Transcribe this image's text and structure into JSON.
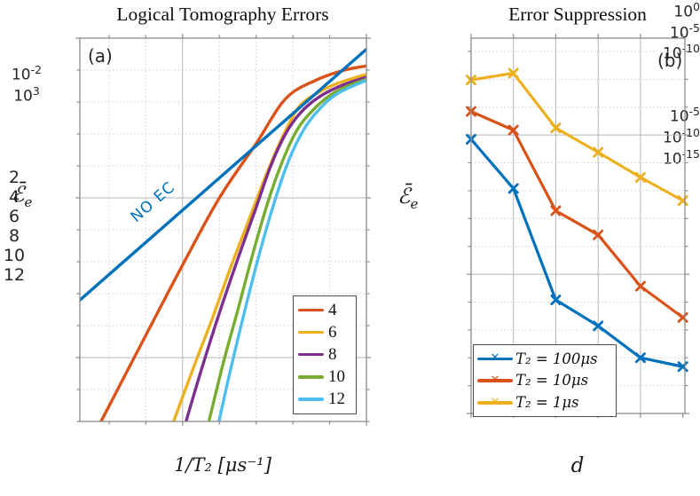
{
  "colors": {
    "blue": "#0072BD",
    "orange": "#D95319",
    "yellow": "#EDB120",
    "purple": "#7E2F8E",
    "green": "#77AC30",
    "lightblue": "#4DBEEE",
    "axis": "#8c8c8c",
    "grid_major": "#b5b5b5",
    "grid_minor": "#cfcfcf",
    "text": "#262626"
  },
  "chart_data": [
    {
      "id": "tomography",
      "type": "line",
      "title": "Logical Tomography Errors",
      "panel_label": "(a)",
      "xlabel": "1/T₂ [μs⁻¹]",
      "ylabel": "ℰ̄",
      "ylabel_sub": "e",
      "xscale": "log",
      "yscale": "log",
      "xlim": [
        1.6e-05,
        1000
      ],
      "ylim": [
        1e-12,
        1
      ],
      "grid": "on",
      "minor_grid": "on",
      "xticks": [
        {
          "base": "10",
          "exp": "-2",
          "value": 0.01
        },
        {
          "base": "10",
          "exp": "3",
          "value": 1000
        }
      ],
      "yticks": [
        {
          "base": "10",
          "exp": "0",
          "value": 1
        },
        {
          "base": "10",
          "exp": "-5",
          "value": 1e-05
        },
        {
          "base": "10",
          "exp": "-10",
          "value": 1e-10
        }
      ],
      "annotation": {
        "text": "NO EC",
        "color_key": "blue"
      },
      "legend": {
        "position": "lower right",
        "entries": [
          "4",
          "6",
          "8",
          "10",
          "12"
        ]
      },
      "series": [
        {
          "name": "4",
          "color_key": "orange",
          "points": [
            [
              4.9e-05,
              6.3e-13
            ],
            [
              0.001,
              5e-10
            ],
            [
              0.01,
              7.9e-08
            ],
            [
              0.1,
              1e-05
            ],
            [
              1,
              0.0005
            ],
            [
              6.3,
              0.0126
            ],
            [
              40,
              0.047
            ],
            [
              250,
              0.1
            ],
            [
              1000,
              0.135
            ]
          ]
        },
        {
          "name": "6",
          "color_key": "yellow",
          "points": [
            [
              0.0049,
              6.3e-13
            ],
            [
              0.02,
              5e-11
            ],
            [
              0.063,
              1.6e-09
            ],
            [
              0.2,
              6.3e-08
            ],
            [
              0.63,
              2e-06
            ],
            [
              2,
              6.3e-05
            ],
            [
              6.3,
              0.00126
            ],
            [
              15.8,
              0.0079
            ],
            [
              50,
              0.02
            ],
            [
              158,
              0.038
            ],
            [
              1000,
              0.074
            ]
          ]
        },
        {
          "name": "8",
          "color_key": "purple",
          "points": [
            [
              0.011,
              6.3e-13
            ],
            [
              0.032,
              4e-11
            ],
            [
              0.1,
              2.5e-09
            ],
            [
              0.32,
              1.26e-07
            ],
            [
              1,
              5e-06
            ],
            [
              2.5,
              0.0001
            ],
            [
              6.3,
              0.001
            ],
            [
              15.8,
              0.0045
            ],
            [
              50,
              0.014
            ],
            [
              200,
              0.032
            ],
            [
              1000,
              0.06
            ]
          ]
        },
        {
          "name": "10",
          "color_key": "green",
          "points": [
            [
              0.047,
              6.3e-13
            ],
            [
              0.126,
              6.3e-11
            ],
            [
              0.32,
              3.2e-09
            ],
            [
              0.79,
              1.6e-07
            ],
            [
              2,
              6.3e-06
            ],
            [
              5,
              0.000126
            ],
            [
              12.6,
              0.00126
            ],
            [
              32,
              0.005
            ],
            [
              100,
              0.016
            ],
            [
              316,
              0.032
            ],
            [
              1000,
              0.052
            ]
          ]
        },
        {
          "name": "12",
          "color_key": "lightblue",
          "points": [
            [
              0.089,
              6.3e-13
            ],
            [
              0.2,
              4e-11
            ],
            [
              0.5,
              3.2e-09
            ],
            [
              1.26,
              2e-07
            ],
            [
              3.2,
              7.9e-06
            ],
            [
              7.9,
              0.00016
            ],
            [
              20,
              0.0014
            ],
            [
              50,
              0.0056
            ],
            [
              158,
              0.018
            ],
            [
              1000,
              0.048
            ]
          ]
        },
        {
          "name": "NO EC",
          "color_key": "blue",
          "points": [
            [
              1.6e-05,
              6.3e-09
            ],
            [
              1000,
              0.45
            ]
          ]
        }
      ]
    },
    {
      "id": "suppression",
      "type": "line",
      "title": "Error Suppression",
      "panel_label": "(b)",
      "xlabel": "d",
      "ylabel": "ℰ̄",
      "ylabel_sub": "e",
      "xscale": "linear",
      "yscale": "log",
      "xlim": [
        2,
        12.1
      ],
      "ylim": [
        1e-15,
        0.03
      ],
      "grid": "on",
      "minor_grid": "on",
      "marker": "x",
      "xticks": [
        2,
        4,
        6,
        8,
        10,
        12
      ],
      "yticks": [
        {
          "base": "10",
          "exp": "-5",
          "value": 1e-05
        },
        {
          "base": "10",
          "exp": "-10",
          "value": 1e-10
        },
        {
          "base": "10",
          "exp": "-15",
          "value": 1e-15
        }
      ],
      "legend": {
        "position": "lower left"
      },
      "series": [
        {
          "name": "T₂ = 100μs",
          "color_key": "blue",
          "x": [
            2,
            4,
            6,
            8,
            10,
            12
          ],
          "y": [
            7e-06,
            1.2e-07,
            1.2e-11,
            1.4e-12,
            1e-13,
            4.8e-14
          ]
        },
        {
          "name": "T₂ = 10μs",
          "color_key": "orange",
          "x": [
            2,
            4,
            6,
            8,
            10,
            12
          ],
          "y": [
            7e-05,
            1.5e-05,
            1.9e-08,
            2.6e-09,
            3.7e-11,
            2.8e-12
          ]
        },
        {
          "name": "T₂ = 1μs",
          "color_key": "yellow",
          "x": [
            2,
            4,
            6,
            8,
            10,
            12
          ],
          "y": [
            0.00095,
            0.00165,
            1.8e-05,
            2.4e-06,
            3e-07,
            4.4e-08
          ]
        }
      ]
    }
  ]
}
